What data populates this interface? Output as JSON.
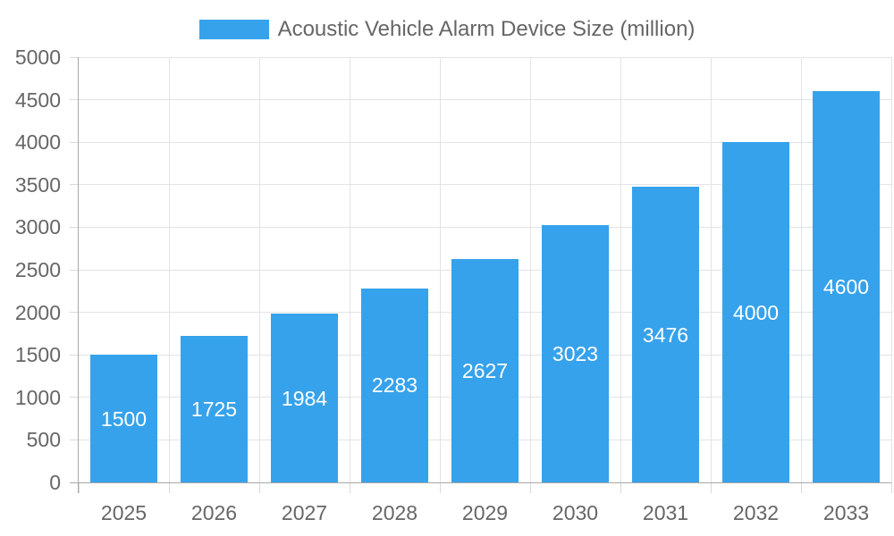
{
  "legend": {
    "label": "Acoustic Vehicle Alarm Device Size (million)"
  },
  "chart_data": {
    "type": "bar",
    "title": "Acoustic Vehicle Alarm Device Size (million)",
    "categories": [
      "2025",
      "2026",
      "2027",
      "2028",
      "2029",
      "2030",
      "2031",
      "2032",
      "2033"
    ],
    "values": [
      1500,
      1725,
      1984,
      2283,
      2627,
      3023,
      3476,
      4000,
      4600
    ],
    "value_labels": [
      "1500",
      "1725",
      "1984",
      "2283",
      "2627",
      "3023",
      "3476",
      "4000",
      "4600"
    ],
    "xlabel": "",
    "ylabel": "",
    "ylim": [
      0,
      5000
    ],
    "ytick_step": 500,
    "ytick_labels": [
      "0",
      "500",
      "1000",
      "1500",
      "2000",
      "2500",
      "3000",
      "3500",
      "4000",
      "4500",
      "5000"
    ],
    "grid": true,
    "legend_position": "top",
    "colors": {
      "bar": "#36A2EB",
      "value_label": "#ffffff",
      "tick_label": "#666666",
      "legend_text": "#666666",
      "gridline": "#e3e3e3",
      "axis_line": "#a8a8a8",
      "tick_mark": "#d9d9d9",
      "background": "#ffffff"
    }
  }
}
